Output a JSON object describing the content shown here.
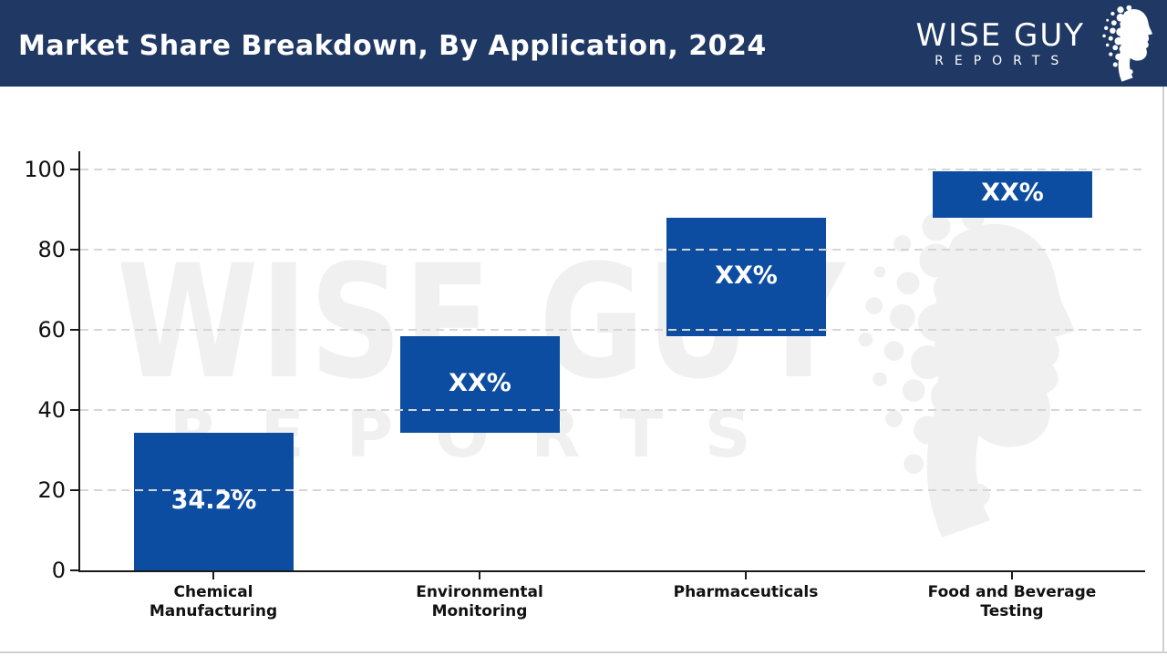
{
  "header": {
    "title": "Market Share Breakdown, By Application, 2024",
    "logo": {
      "brand": "WISE GUY",
      "subtitle": "REPORTS"
    }
  },
  "watermark": {
    "line1": "WISE GUY",
    "line2": "REPORTS"
  },
  "colors": {
    "header_bg": "#1f3864",
    "bar": "#0d4da1",
    "grid": "#d6d6d6",
    "axis": "#1a1a1a",
    "watermark": "#f0f0f0",
    "bar_label_text": "#ffffff"
  },
  "chart_data": {
    "type": "bar",
    "variant": "waterfall",
    "title": "Market Share Breakdown, By Application, 2024",
    "categories": [
      "Chemical Manufacturing",
      "Environmental Monitoring",
      "Pharmaceuticals",
      "Food and Beverage Testing"
    ],
    "category_lines": [
      [
        "Chemical",
        "Manufacturing"
      ],
      [
        "Environmental",
        "Monitoring"
      ],
      [
        "Pharmaceuticals"
      ],
      [
        "Food and Beverage",
        "Testing"
      ]
    ],
    "segments": [
      {
        "category": "Chemical Manufacturing",
        "start": 0,
        "end": 34.2,
        "label": "34.2%"
      },
      {
        "category": "Environmental Monitoring",
        "start": 34.2,
        "end": 58.4,
        "label": "XX%"
      },
      {
        "category": "Pharmaceuticals",
        "start": 58.4,
        "end": 87.9,
        "label": "XX%"
      },
      {
        "category": "Food and Beverage Testing",
        "start": 87.9,
        "end": 99.5,
        "label": "XX%"
      }
    ],
    "ylabel": "",
    "xlabel": "",
    "yticks": [
      0,
      20,
      40,
      60,
      80,
      100
    ],
    "ylim": [
      0,
      104
    ],
    "grid": "horizontal-dashed",
    "gridlines_above_bars": true,
    "legend": false
  }
}
